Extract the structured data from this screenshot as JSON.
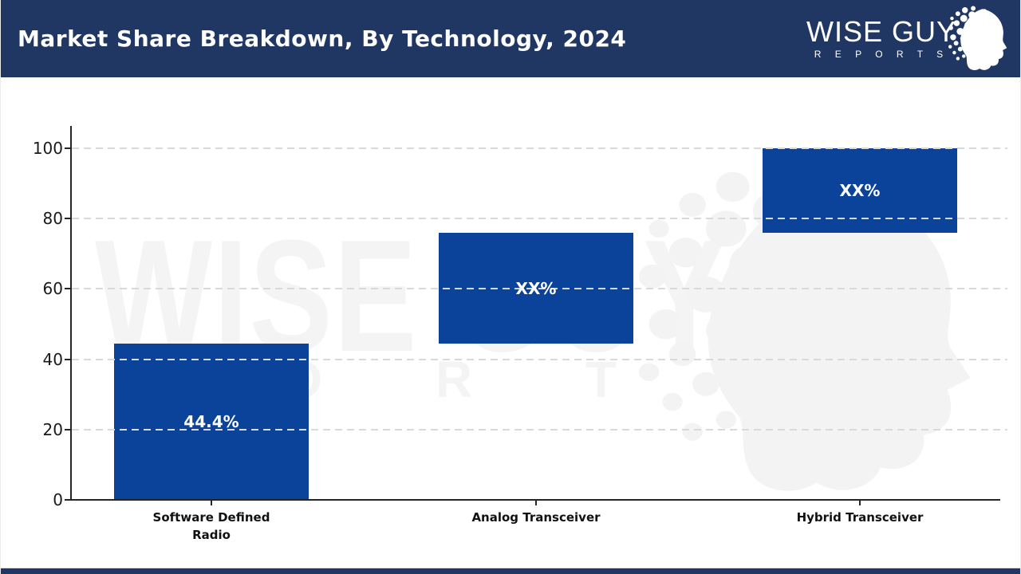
{
  "header": {
    "title": "Market Share Breakdown, By Technology, 2024",
    "logo": {
      "wordmark": "WISE GUY",
      "subtext": "R E P O R T S"
    }
  },
  "watermark": {
    "wordmark": "WISE GUY",
    "subtext": "P O R T S"
  },
  "chart_data": {
    "type": "bar",
    "variant": "floating-segment-waterfall",
    "title": "Market Share Breakdown, By Technology, 2024",
    "categories": [
      "Software Defined Radio",
      "Analog Transceiver",
      "Hybrid Transceiver"
    ],
    "segments": [
      {
        "category": "Software Defined Radio",
        "start": 0,
        "end": 44.4,
        "label": "44.4%"
      },
      {
        "category": "Analog Transceiver",
        "start": 44.4,
        "end": 76,
        "label": "XX%"
      },
      {
        "category": "Hybrid Transceiver",
        "start": 76,
        "end": 100,
        "label": "XX%"
      }
    ],
    "yticks": [
      0,
      20,
      40,
      60,
      80,
      100
    ],
    "ylim": [
      0,
      105
    ],
    "xlabel": "",
    "ylabel": "",
    "legend": "none",
    "grid": "horizontal-dashed",
    "colors": {
      "bar": "#0b429a",
      "gridline": "#d9d9d9",
      "axis": "#262626",
      "header_bg": "#213763",
      "bar_label_text": "#ffffff"
    }
  }
}
